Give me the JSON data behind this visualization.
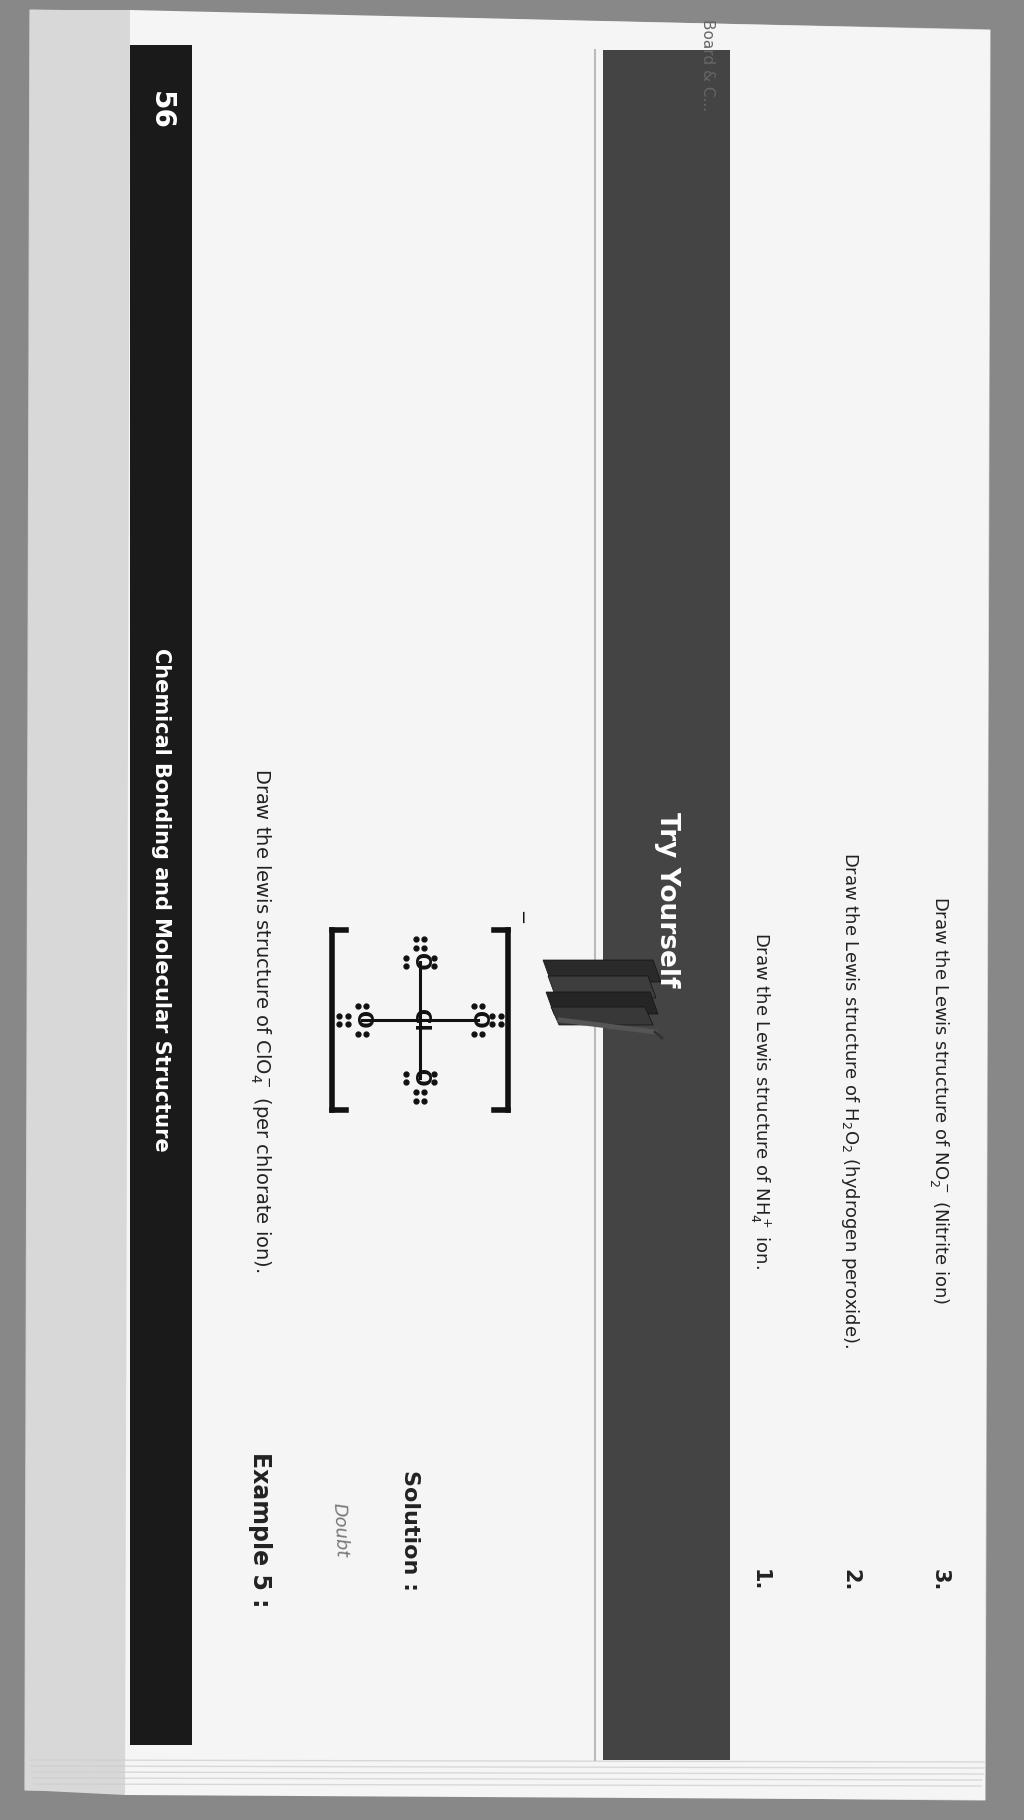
{
  "bg_outer": "#7a7a7a",
  "bg_shadow": "#5a5a5a",
  "page_color": "#f0f0f0",
  "page_color2": "#e8e8e8",
  "white": "#f8f8f8",
  "dark": "#1a1a1a",
  "medium_gray": "#888888",
  "header_bar_color": "#1a1a1a",
  "try_bar_color": "#444444",
  "separator_color": "#999999",
  "text_dark": "#222222",
  "text_light": "#aaaaaa",
  "handwritten_color": "#777777",
  "board_text_color": "#666666",
  "page_number": "56",
  "header_main": "Chemical Bonding and Molecular Structure",
  "board_text": "Board & C...",
  "example_label": "Example 5 :",
  "example_body": "Draw the lewis structure of $\\mathregular{ClO_4^-}$ (per chlorate ion).",
  "solution_label": "Solution :",
  "handwritten": "Doubt",
  "try_title": "Try Yourself",
  "items": [
    {
      "num": "1.",
      "text": "Draw the Lewis structure of $\\mathregular{NH_4^+}$ ion."
    },
    {
      "num": "2.",
      "text": "Draw the Lewis structure of $\\mathregular{H_2O_2}$ (hydrogen peroxide)."
    },
    {
      "num": "3.",
      "text": "Draw the Lewis structure of $\\mathregular{NO_2^-}$ (Nitrite ion)"
    }
  ]
}
